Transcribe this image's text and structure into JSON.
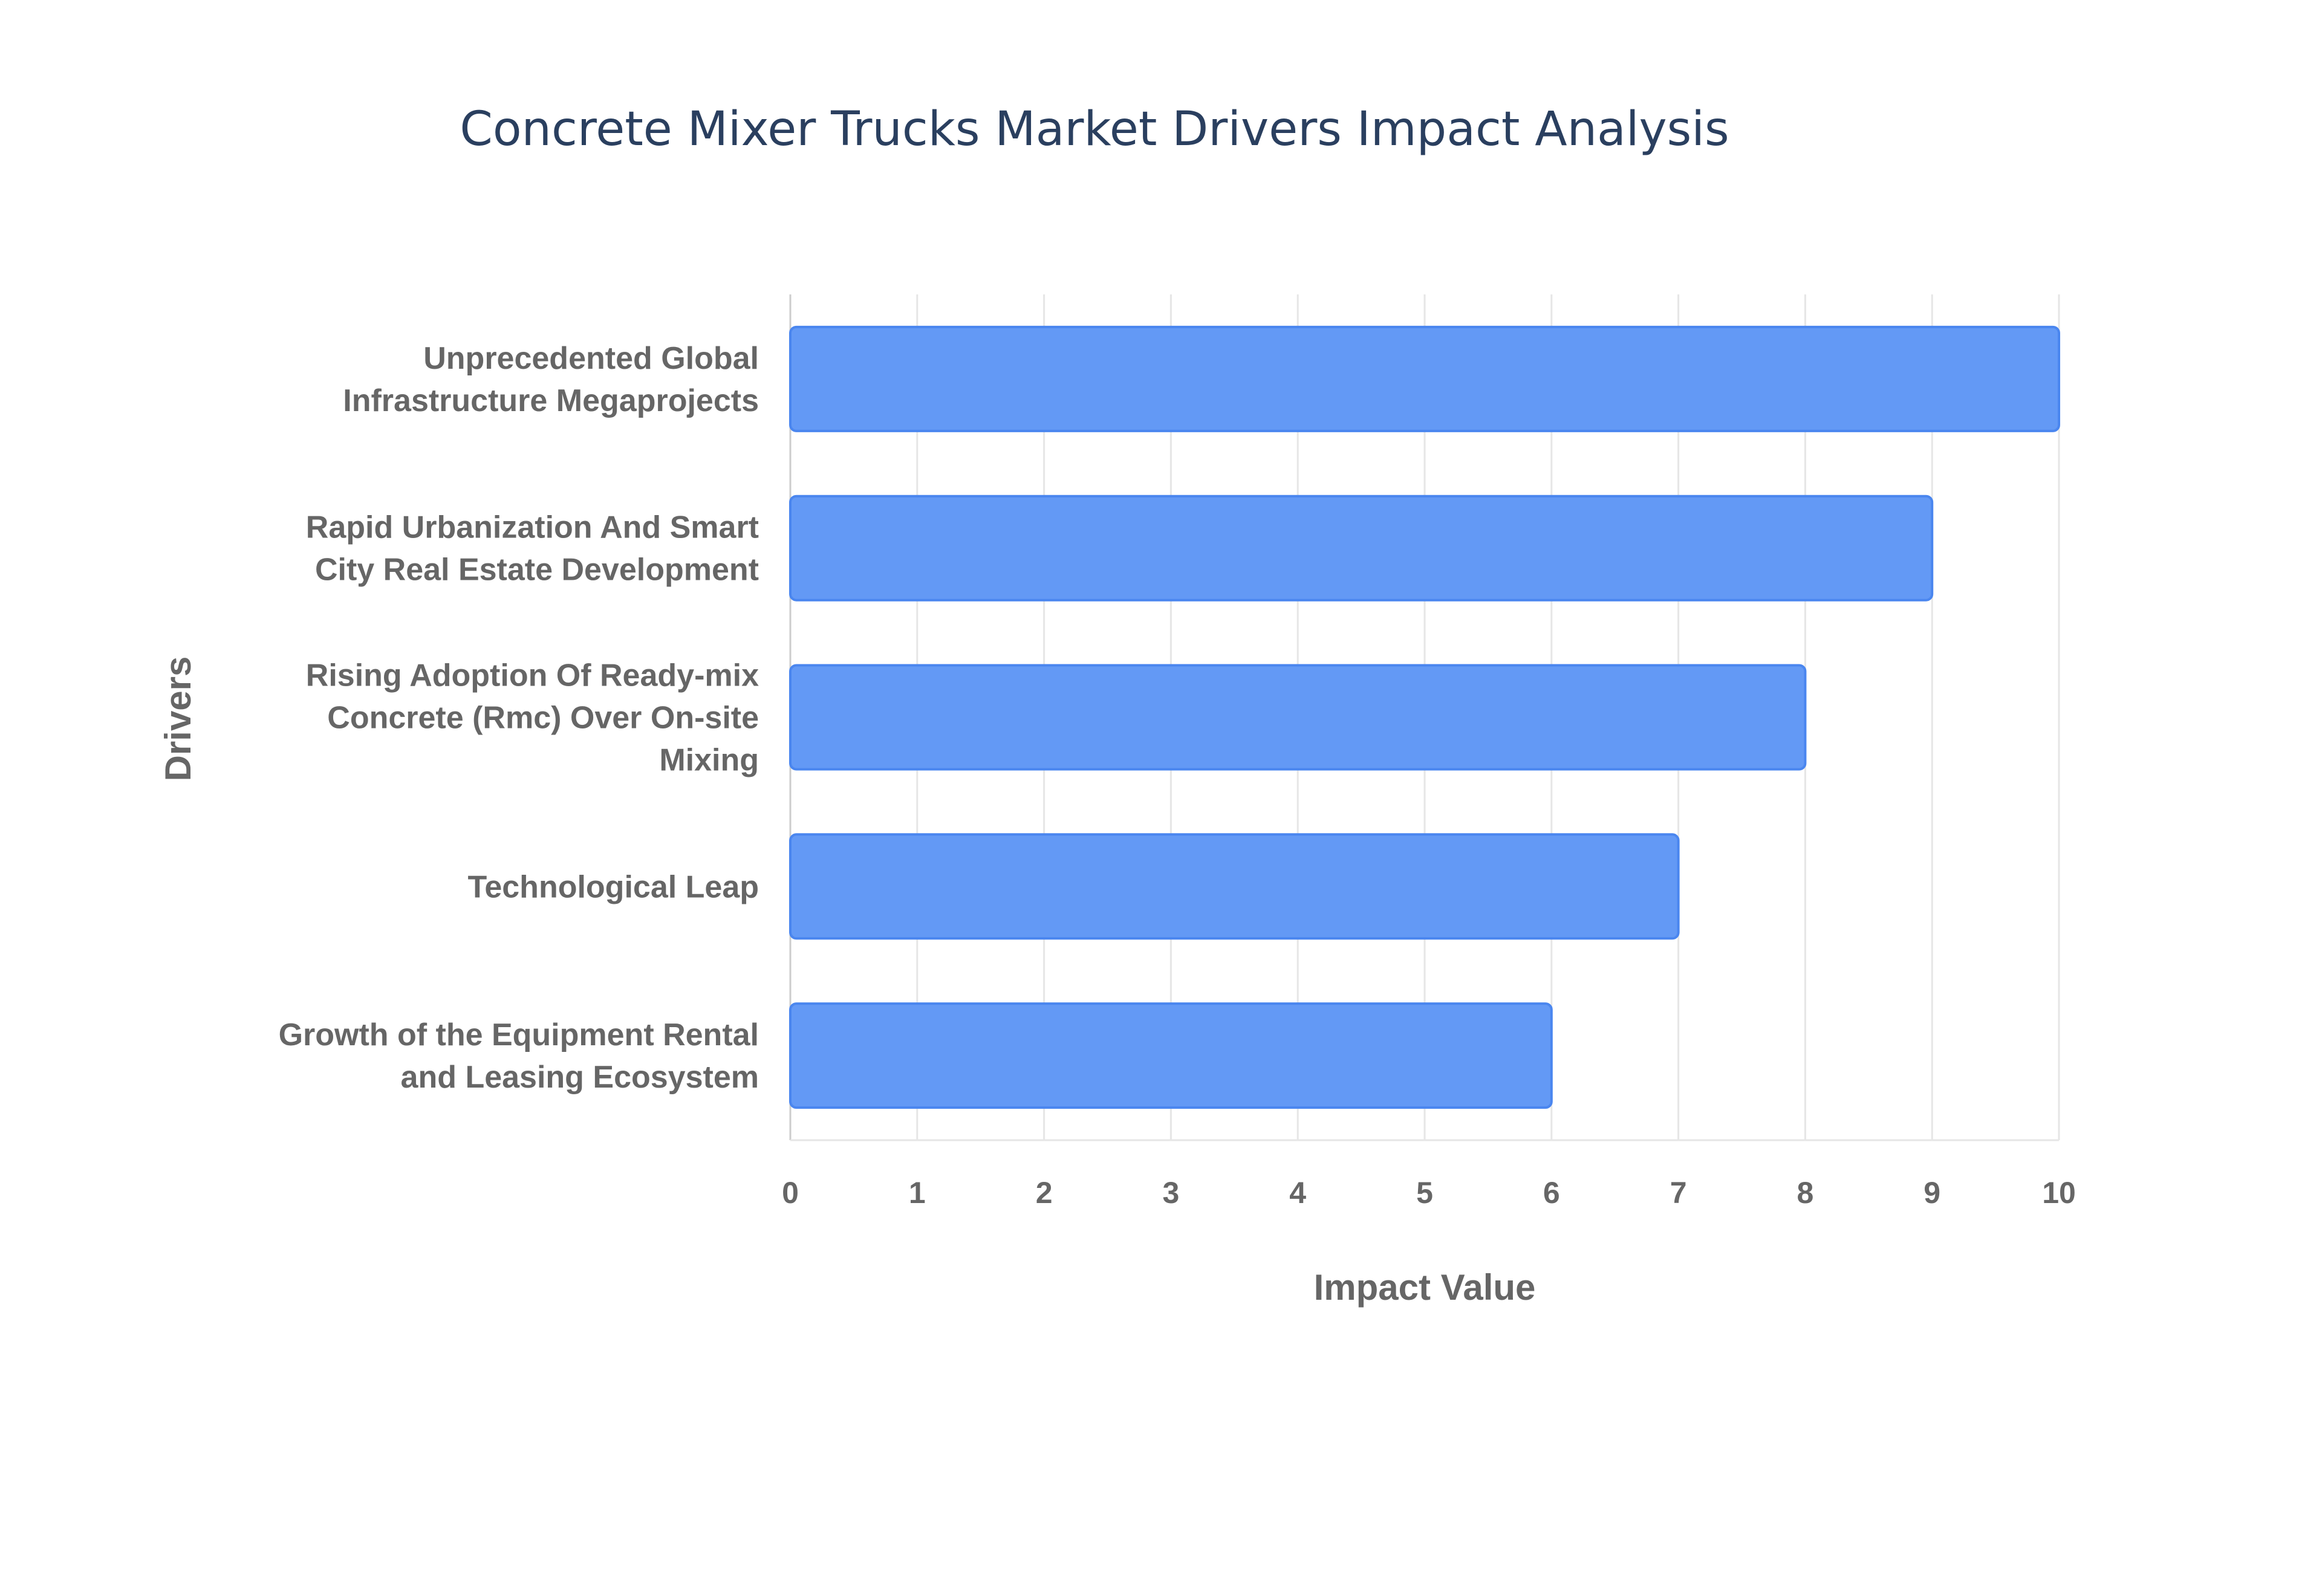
{
  "chart_data": {
    "type": "bar",
    "orientation": "horizontal",
    "title": "Concrete Mixer Trucks Market Drivers Impact Analysis",
    "xlabel": "Impact Value",
    "ylabel": "Drivers",
    "categories": [
      [
        "Unprecedented Global",
        "Infrastructure Megaprojects"
      ],
      [
        "Rapid Urbanization And Smart",
        "City Real Estate Development"
      ],
      [
        "Rising Adoption Of Ready-mix",
        "Concrete (Rmc) Over On-site",
        "Mixing"
      ],
      [
        "Technological Leap"
      ],
      [
        "Growth of the Equipment Rental",
        "and Leasing Ecosystem"
      ]
    ],
    "values": [
      10,
      9,
      8,
      7,
      6
    ],
    "xlim": [
      0,
      10
    ],
    "xticks": [
      "0",
      "1",
      "2",
      "3",
      "4",
      "5",
      "6",
      "7",
      "8",
      "9",
      "10"
    ],
    "grid": true,
    "colors": {
      "bar": "#6399f5",
      "bar_border": "#4a86ef",
      "grid": "#e6e6e6",
      "title": "#2a3f5f",
      "text": "#666666"
    }
  }
}
